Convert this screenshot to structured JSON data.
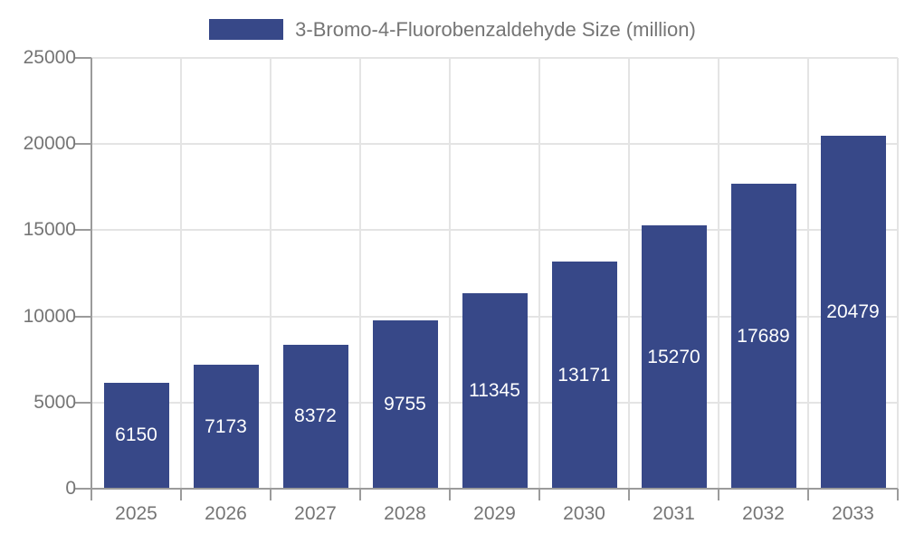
{
  "chart_data": {
    "type": "bar",
    "title": "",
    "legend": "3-Bromo-4-Fluorobenzaldehyde Size (million)",
    "categories": [
      "2025",
      "2026",
      "2027",
      "2028",
      "2029",
      "2030",
      "2031",
      "2032",
      "2033"
    ],
    "values": [
      6150,
      7173,
      8372,
      9755,
      11345,
      13171,
      15270,
      17689,
      20479
    ],
    "xlabel": "",
    "ylabel": "",
    "ylim": [
      0,
      25000
    ],
    "yticks": [
      0,
      5000,
      10000,
      15000,
      20000,
      25000
    ],
    "grid": true,
    "legend_position": "top-center",
    "bar_label_position": "inside-center",
    "colors": {
      "bar": "#374888",
      "bar_label": "#ffffff",
      "axis_text": "#757575",
      "grid_line": "#e4e4e4",
      "axis_line": "#9b9b9b",
      "background": "#ffffff"
    }
  }
}
